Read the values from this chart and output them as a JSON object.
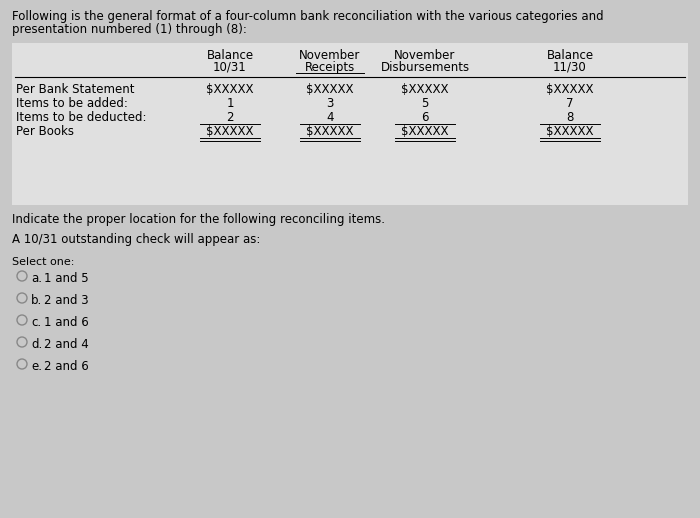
{
  "bg_color": "#c8c8c8",
  "table_bg": "#e0e0e0",
  "intro_line1": "Following is the general format of a four-column bank reconciliation with the various categories and",
  "intro_line2": "presentation numbered (1) through (8):",
  "col_headers": [
    [
      "Balance",
      "10/31"
    ],
    [
      "November",
      "Receipts"
    ],
    [
      "November",
      "Disbursements"
    ],
    [
      "Balance",
      "11/30"
    ]
  ],
  "receipts_underline": true,
  "row_labels": [
    "Per Bank Statement",
    "Items to be added:",
    "Items to be deducted:",
    "Per Books"
  ],
  "table_data": [
    [
      "$XXXXX",
      "$XXXXX",
      "$XXXXX",
      "$XXXXX"
    ],
    [
      "1",
      "3",
      "5",
      "7"
    ],
    [
      "2",
      "4",
      "6",
      "8"
    ],
    [
      "$XXXXX",
      "$XXXXX",
      "$XXXXX",
      "$XXXXX"
    ]
  ],
  "bottom_text": "Indicate the proper location for the following reconciling items.",
  "question_text": "A 10/31 outstanding check will appear as:",
  "select_text": "Select one:",
  "options": [
    [
      "a.",
      "1 and 5"
    ],
    [
      "b.",
      "2 and 3"
    ],
    [
      "c.",
      "1 and 6"
    ],
    [
      "d.",
      "2 and 4"
    ],
    [
      "e.",
      "2 and 6"
    ]
  ],
  "filled_option": -1,
  "font_size": 8.5,
  "small_font_size": 8.0
}
